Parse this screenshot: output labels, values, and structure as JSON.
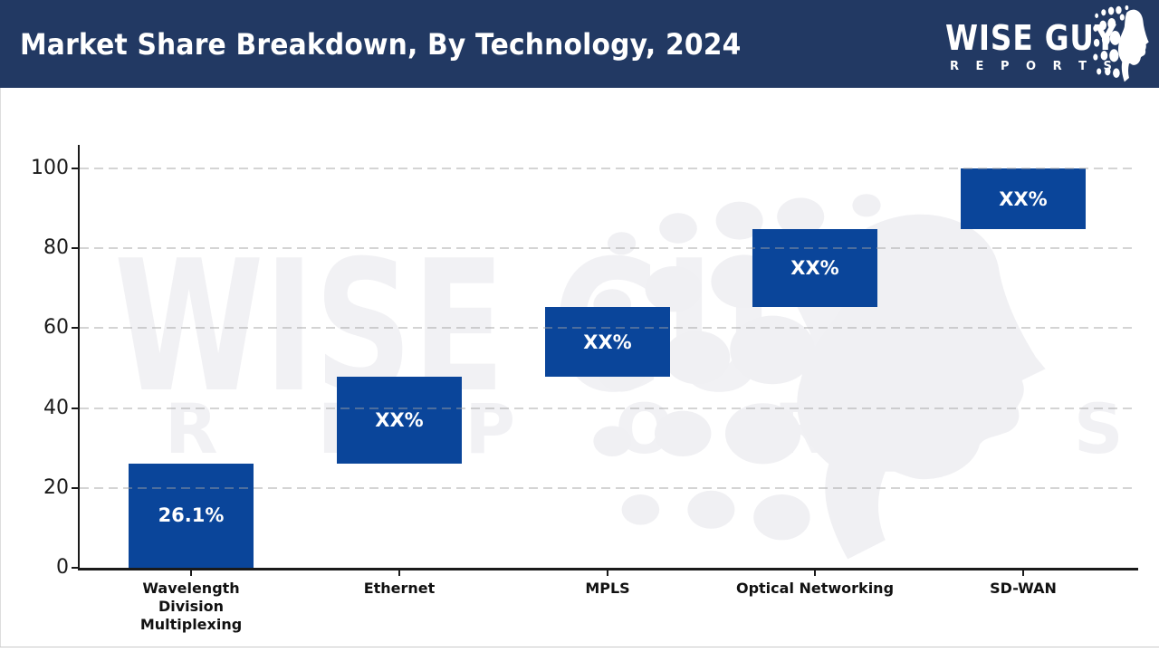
{
  "header": {
    "title": "Market Share Breakdown, By Technology, 2024",
    "bg_color": "#223963",
    "logo": {
      "line1": "WISE GUY",
      "line2": "R E P O R T S"
    }
  },
  "watermark": {
    "line1": "WISE GUY",
    "line2": "R E P O R T S",
    "color": "#f1f1f4"
  },
  "chart_data": {
    "type": "bar",
    "variant": "waterfall",
    "title": "Market Share Breakdown, By Technology, 2024",
    "xlabel": "",
    "ylabel": "",
    "categories": [
      "Wavelength Division Multiplexing",
      "Ethernet",
      "MPLS",
      "Optical Networking",
      "SD-WAN"
    ],
    "bars": [
      {
        "category_lines": [
          "Wavelength",
          "Division",
          "Multiplexing"
        ],
        "start": 0,
        "end": 26.1,
        "value": 26.1,
        "label": "26.1%"
      },
      {
        "category_lines": [
          "Ethernet"
        ],
        "start": 26.1,
        "end": 47.8,
        "value": 21.7,
        "label": "XX%"
      },
      {
        "category_lines": [
          "MPLS"
        ],
        "start": 47.9,
        "end": 65.2,
        "value": 17.3,
        "label": "XX%"
      },
      {
        "category_lines": [
          "Optical Networking"
        ],
        "start": 65.4,
        "end": 84.8,
        "value": 19.4,
        "label": "XX%"
      },
      {
        "category_lines": [
          "SD-WAN"
        ],
        "start": 84.8,
        "end": 100,
        "value": 15.2,
        "label": "XX%"
      }
    ],
    "yticks": [
      0,
      20,
      40,
      60,
      80,
      100
    ],
    "ylim": [
      0,
      105
    ],
    "grid": "dashed horizontal",
    "legend": "none",
    "bar_color": "#0A459A",
    "grid_color": "#d3d3d3",
    "axis_color": "#1a1a1a"
  }
}
